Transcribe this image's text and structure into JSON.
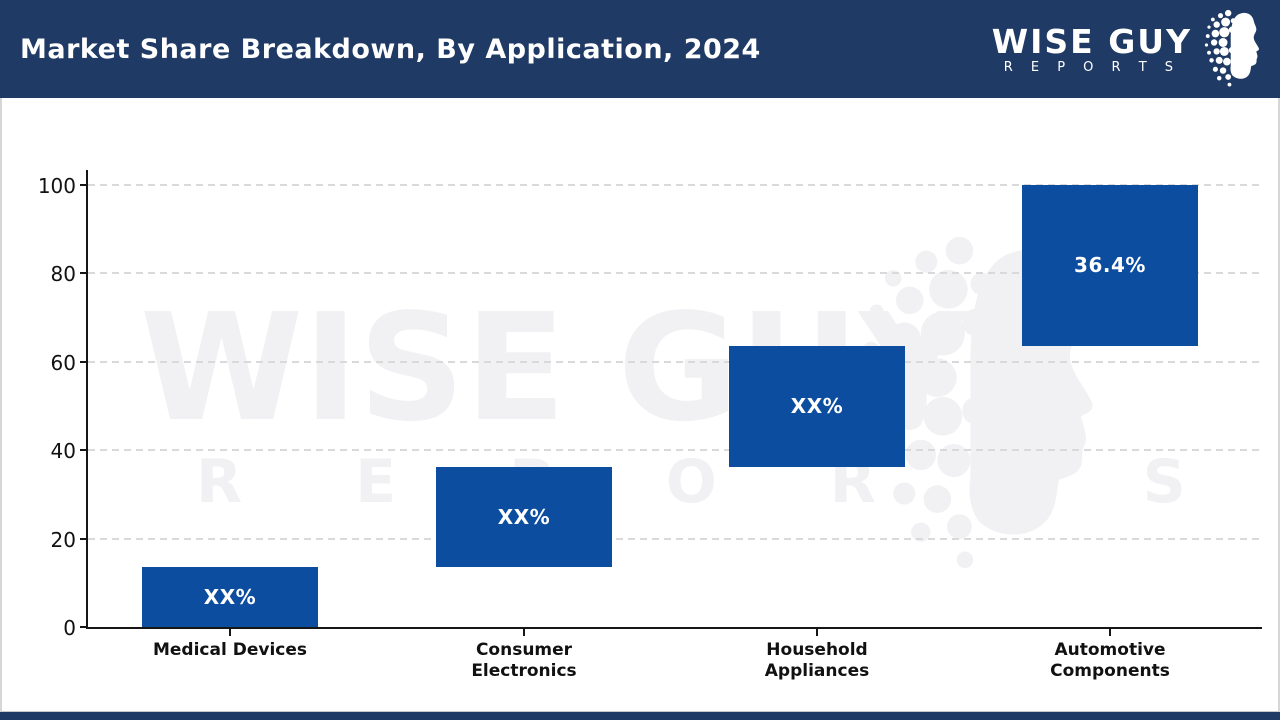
{
  "header": {
    "title": "Market Share Breakdown, By Application, 2024"
  },
  "logo": {
    "line1": "WISE GUY",
    "line2": "R E P O R T S",
    "head_icon": "dotted-face-profile"
  },
  "watermark": {
    "line1": "WISE GUY",
    "line2": "R E P O R T S",
    "head_icon": "dotted-face-profile"
  },
  "colors": {
    "header_bg": "#203a66",
    "bar": "#0c4da0",
    "bar_label_text": "#ffffff",
    "watermark": "#f1f1f4",
    "gridline": "#d9d9d9",
    "axis": "#161616"
  },
  "chart_data": {
    "type": "bar",
    "subtype": "floating-waterfall",
    "title": "Market Share Breakdown, By Application, 2024",
    "categories": [
      "Medical Devices",
      "Consumer\nElectronics",
      "Household\nAppliances",
      "Automotive\nComponents"
    ],
    "bars": [
      {
        "category": "Medical Devices",
        "base": 0,
        "top": 13.6,
        "label": "XX%"
      },
      {
        "category": "Consumer Electronics",
        "base": 13.6,
        "top": 36.3,
        "label": "XX%"
      },
      {
        "category": "Household Appliances",
        "base": 36.3,
        "top": 63.6,
        "label": "XX%"
      },
      {
        "category": "Automotive Components",
        "base": 63.6,
        "top": 100,
        "label": "36.4%"
      }
    ],
    "ylim": [
      0,
      100
    ],
    "yticks": [
      0,
      20,
      40,
      60,
      80,
      100
    ],
    "grid": "horizontal-dashed",
    "legend": "none",
    "xlabel": "",
    "ylabel": ""
  }
}
